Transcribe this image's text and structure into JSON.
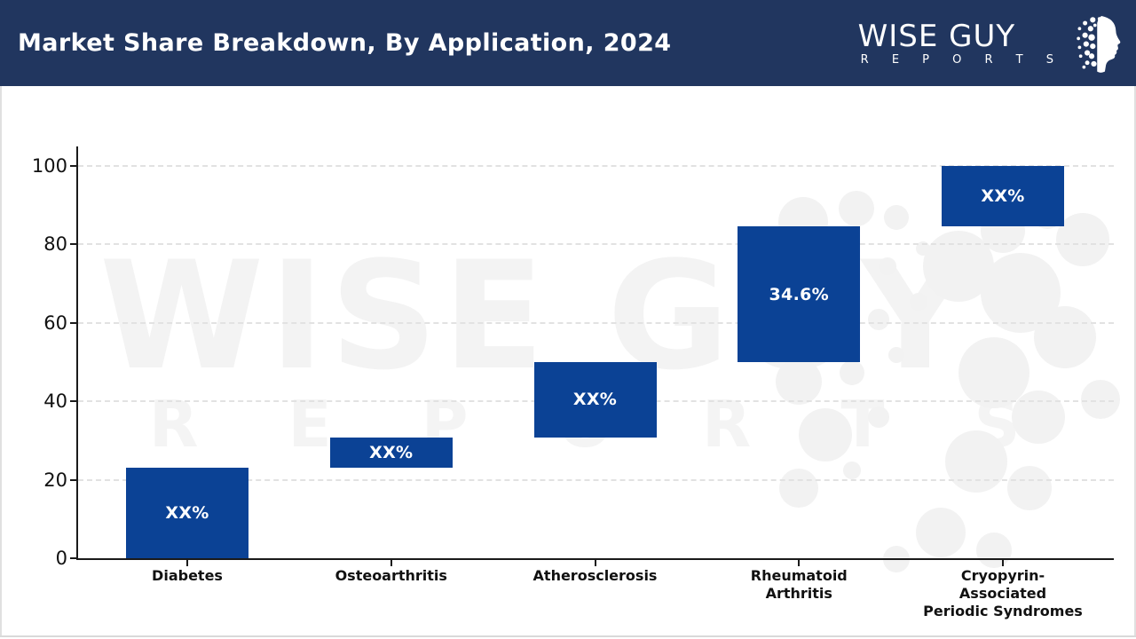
{
  "header": {
    "title": "Market Share Breakdown, By Application, 2024",
    "logo": {
      "name": "WISE GUY",
      "subtitle": "R E P O R T S"
    }
  },
  "watermark": {
    "line1": "WISE GUY",
    "line2": "R E P O R T S"
  },
  "chart_data": {
    "type": "bar",
    "variant": "waterfall",
    "title": "Market Share Breakdown, By Application, 2024",
    "xlabel": "",
    "ylabel": "",
    "ylim": [
      0,
      100
    ],
    "yticks": [
      0,
      20,
      40,
      60,
      80,
      100
    ],
    "grid": "horizontal-dashed",
    "legend": "none",
    "categories": [
      "Diabetes",
      "Osteoarthritis",
      "Atherosclerosis",
      "Rheumatoid\nArthritis",
      "Cryopyrin-\nAssociated\nPeriodic Syndromes"
    ],
    "bars": [
      {
        "category": "Diabetes",
        "start": 0,
        "end": 23.1,
        "value": 23.1,
        "label": "XX%"
      },
      {
        "category": "Osteoarthritis",
        "start": 23.1,
        "end": 30.8,
        "value": 7.7,
        "label": "XX%"
      },
      {
        "category": "Atherosclerosis",
        "start": 30.8,
        "end": 50.0,
        "value": 19.2,
        "label": "XX%"
      },
      {
        "category": "Rheumatoid Arthritis",
        "start": 50.0,
        "end": 84.6,
        "value": 34.6,
        "label": "34.6%"
      },
      {
        "category": "Cryopyrin-Associated Periodic Syndromes",
        "start": 84.6,
        "end": 100.0,
        "value": 15.4,
        "label": "XX%"
      }
    ],
    "bar_color": "#0b4295",
    "bar_label_color": "#ffffff"
  },
  "colors": {
    "header_bg": "#21365f",
    "axis": "#1a1a1a",
    "grid": "#e2e2e2",
    "watermark": "#f3f3f3",
    "card_border": "#d9d9d9",
    "text": "#111111"
  }
}
